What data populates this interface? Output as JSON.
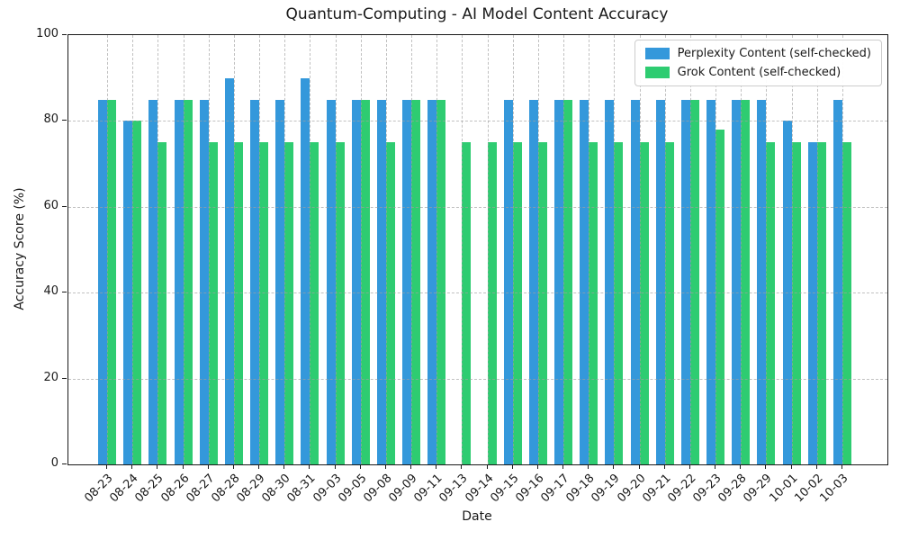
{
  "chart_data": {
    "type": "bar",
    "title": "Quantum-Computing - AI Model Content Accuracy",
    "xlabel": "Date",
    "ylabel": "Accuracy Score (%)",
    "ylim": [
      0,
      100
    ],
    "yticks": [
      0,
      20,
      40,
      60,
      80,
      100
    ],
    "grid": true,
    "legend_position": "upper right",
    "categories": [
      "08-23",
      "08-24",
      "08-25",
      "08-26",
      "08-27",
      "08-28",
      "08-29",
      "08-30",
      "08-31",
      "09-03",
      "09-05",
      "09-08",
      "09-09",
      "09-11",
      "09-13",
      "09-14",
      "09-15",
      "09-16",
      "09-17",
      "09-18",
      "09-19",
      "09-20",
      "09-21",
      "09-22",
      "09-23",
      "09-28",
      "09-29",
      "10-01",
      "10-02",
      "10-03"
    ],
    "series": [
      {
        "name": "Perplexity Content (self-checked)",
        "color": "#3498db",
        "values": [
          85,
          80,
          85,
          85,
          85,
          90,
          85,
          85,
          90,
          85,
          85,
          85,
          85,
          85,
          0,
          0,
          85,
          85,
          85,
          85,
          85,
          85,
          85,
          85,
          85,
          85,
          85,
          80,
          75,
          85
        ]
      },
      {
        "name": "Grok Content (self-checked)",
        "color": "#2ecc71",
        "values": [
          85,
          80,
          75,
          85,
          75,
          75,
          75,
          75,
          75,
          75,
          85,
          75,
          85,
          85,
          75,
          75,
          75,
          75,
          85,
          75,
          75,
          75,
          75,
          85,
          78,
          85,
          75,
          75,
          75,
          75
        ]
      }
    ]
  },
  "colors": {
    "perplexity": "#3498db",
    "grok": "#2ecc71",
    "grid": "#a0a0a0",
    "spine": "#1a1a1a"
  }
}
